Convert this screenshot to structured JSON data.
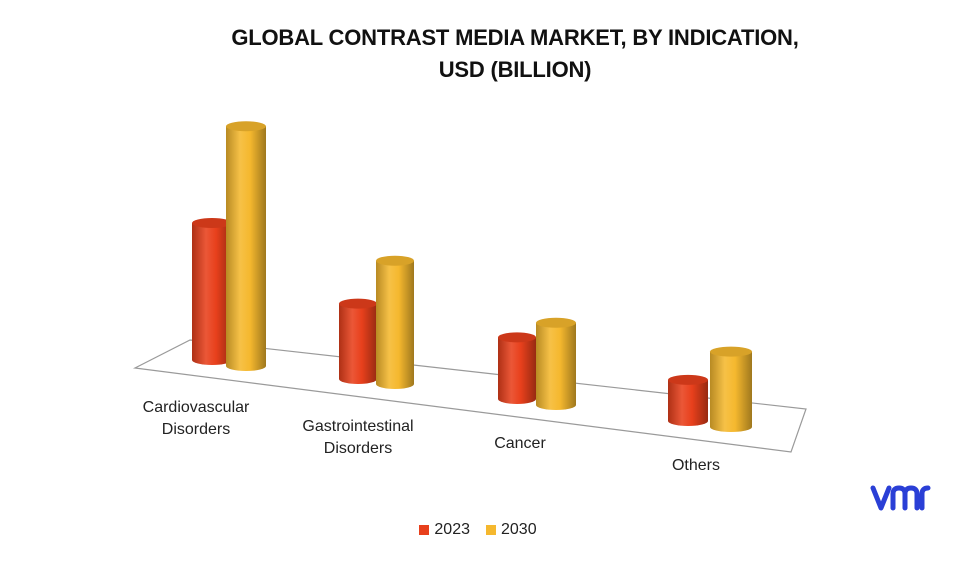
{
  "chart_data": {
    "type": "bar",
    "title_lines": [
      "GLOBAL CONTRAST MEDIA MARKET, BY INDICATION,",
      "USD (BILLION)"
    ],
    "categories": [
      [
        "Cardiovascular",
        "Disorders"
      ],
      [
        "Gastrointestinal",
        "Disorders"
      ],
      [
        "Cancer"
      ],
      [
        "Others"
      ]
    ],
    "series": [
      {
        "name": "2023",
        "color": "#e8401c",
        "values": [
          2.0,
          1.1,
          0.9,
          0.6
        ]
      },
      {
        "name": "2030",
        "color": "#f5b82e",
        "values": [
          3.5,
          1.8,
          1.2,
          1.1
        ]
      }
    ],
    "ylim": [
      0,
      3.6
    ],
    "grid": false,
    "legend_position": "bottom",
    "style": "3d-cylinder"
  },
  "logo": {
    "name": "vmr-logo",
    "color": "#2a3fd6"
  }
}
